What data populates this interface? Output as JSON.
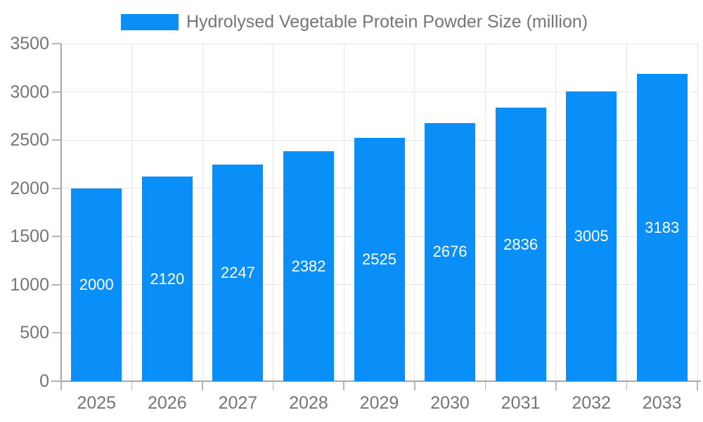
{
  "legend": {
    "label": "Hydrolysed Vegetable Protein Powder Size (million)"
  },
  "colors": {
    "bar": "#0A8FF9",
    "grid": "#E6E6E6",
    "axis": "#A8A8A8",
    "tick": "#B5B5B5",
    "label_text": "#757575",
    "bar_label_text": "#FFFFFF",
    "background": "#FFFFFF"
  },
  "chart_data": {
    "type": "bar",
    "title": "Hydrolysed Vegetable Protein Powder Size (million)",
    "categories": [
      "2025",
      "2026",
      "2027",
      "2028",
      "2029",
      "2030",
      "2031",
      "2032",
      "2033"
    ],
    "values": [
      2000,
      2120,
      2247,
      2382,
      2525,
      2676,
      2836,
      3005,
      3183
    ],
    "xlabel": "",
    "ylabel": "",
    "ylim": [
      0,
      3500
    ],
    "ytick_step": 500,
    "yticks": [
      0,
      500,
      1000,
      1500,
      2000,
      2500,
      3000,
      3500
    ],
    "grid": "both",
    "legend_position": "top-center",
    "bar_value_labels": "inside-center",
    "series": [
      {
        "name": "Hydrolysed Vegetable Protein Powder Size (million)",
        "values": [
          2000,
          2120,
          2247,
          2382,
          2525,
          2676,
          2836,
          3005,
          3183
        ]
      }
    ]
  }
}
